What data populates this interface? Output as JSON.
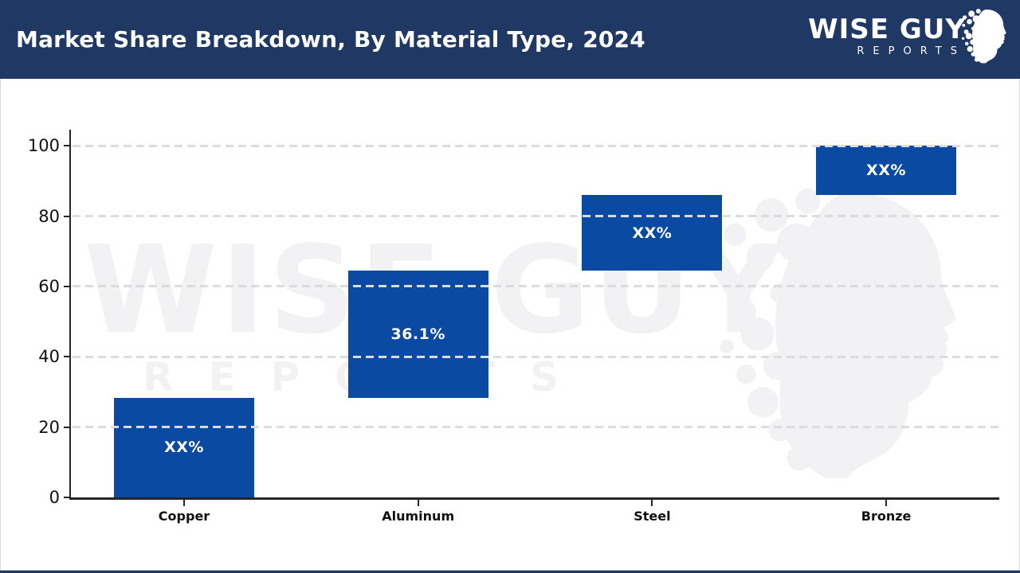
{
  "header": {
    "title": "Market Share Breakdown, By Material Type, 2024",
    "logo": {
      "name": "WISE GUY",
      "subtitle": "REPORTS"
    }
  },
  "watermark": {
    "wordmark": "WISE GUY",
    "subtitle": "REPORTS"
  },
  "chart_data": {
    "type": "bar",
    "subtype": "floating-waterfall",
    "title": "Market Share Breakdown, By Material Type, 2024",
    "categories": [
      "Copper",
      "Aluminum",
      "Steel",
      "Bronze"
    ],
    "bars": [
      {
        "category": "Copper",
        "from": 0,
        "to": 28.4,
        "label": "XX%"
      },
      {
        "category": "Aluminum",
        "from": 28.4,
        "to": 64.5,
        "label": "36.1%"
      },
      {
        "category": "Steel",
        "from": 64.5,
        "to": 86.0,
        "label": "XX%"
      },
      {
        "category": "Bronze",
        "from": 86.0,
        "to": 100.0,
        "label": "XX%"
      }
    ],
    "y_ticks": [
      0,
      20,
      40,
      60,
      80,
      100
    ],
    "ylim": [
      0,
      105
    ],
    "xlabel": "",
    "ylabel": "",
    "grid": "dashed-horizontal-above-bars",
    "legend": "none"
  },
  "colors": {
    "header_bg": "#1f3864",
    "footer_bg": "#1f3864",
    "bar_fill": "#0b4aa2",
    "bar_label_text": "#ffffff",
    "gridline": "#dcdcdc",
    "axis": "#262626",
    "tick_text": "#111111",
    "watermark": "#f2f2f4",
    "page_bg": "#ffffff"
  }
}
